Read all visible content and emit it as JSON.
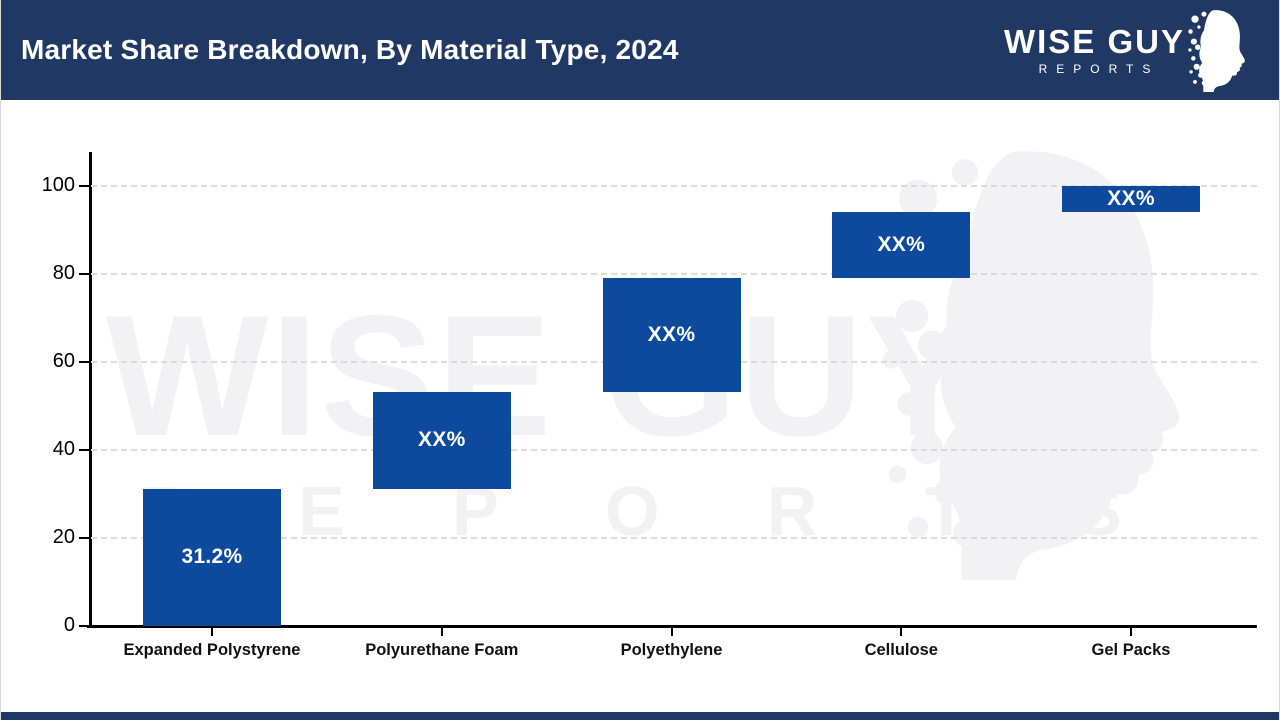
{
  "header": {
    "title": "Market Share Breakdown, By Material Type, 2024",
    "logo": {
      "line1": "WISE GUY",
      "line2": "REPORTS",
      "face_icon": "dotted-head-profile"
    }
  },
  "watermark": {
    "line1": "WISE GUY",
    "line2": "R E P O R T S",
    "face_icon": "dotted-head-profile"
  },
  "colors": {
    "header_bg": "#203864",
    "footer_bg": "#203864",
    "bar": "#0d4a9e",
    "bar_label": "#ffffff",
    "gridline": "#dcdcdc",
    "axis": "#000000",
    "watermark": "#f2f2f5"
  },
  "chart_data": {
    "type": "bar",
    "subtype": "waterfall-floating-bars",
    "title": "Market Share Breakdown, By Material Type, 2024",
    "categories": [
      "Expanded Polystyrene",
      "Polyurethane Foam",
      "Polyethylene",
      "Cellulose",
      "Gel Packs"
    ],
    "segments": [
      {
        "category": "Expanded Polystyrene",
        "label": "31.2%",
        "start": 0,
        "end": 31.2,
        "size": 31.2
      },
      {
        "category": "Polyurethane Foam",
        "label": "XX%",
        "start": 31.2,
        "end": 53.2,
        "size": 22.0
      },
      {
        "category": "Polyethylene",
        "label": "XX%",
        "start": 53.2,
        "end": 79.2,
        "size": 26.0
      },
      {
        "category": "Cellulose",
        "label": "XX%",
        "start": 79.2,
        "end": 94.2,
        "size": 15.0
      },
      {
        "category": "Gel Packs",
        "label": "XX%",
        "start": 94.2,
        "end": 100,
        "size": 5.8
      }
    ],
    "yticks": [
      0,
      20,
      40,
      60,
      80,
      100
    ],
    "ylim": [
      0,
      107
    ],
    "xlabel": "",
    "ylabel": "",
    "grid": "horizontal-dashed",
    "legend": "none"
  }
}
